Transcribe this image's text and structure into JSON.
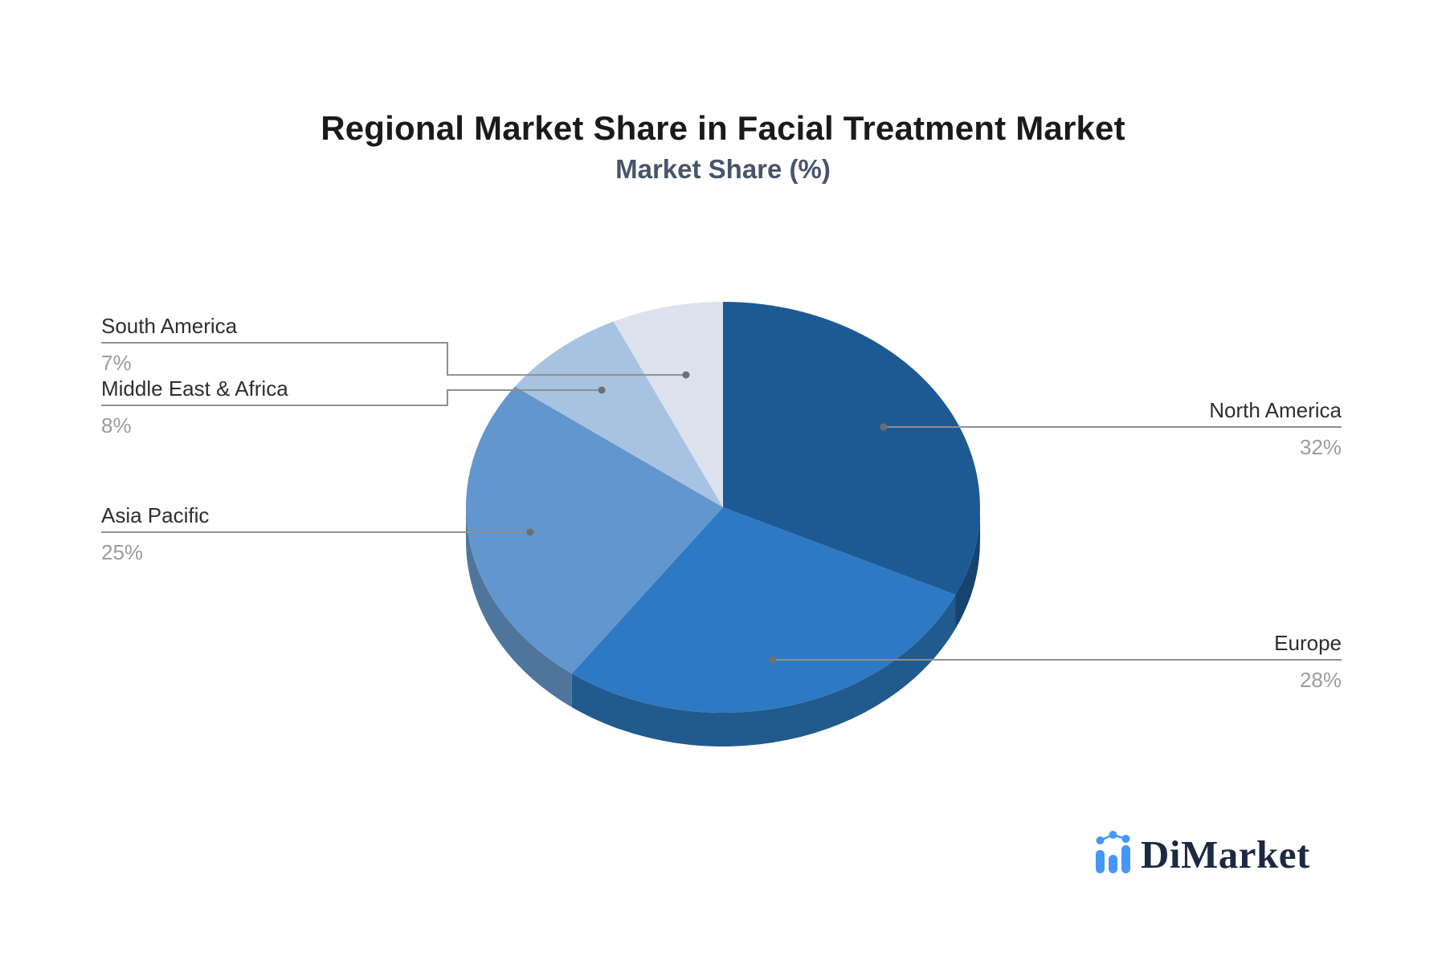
{
  "chart_data": {
    "type": "pie",
    "style": "3d",
    "title": "Regional Market Share in Facial Treatment Market",
    "subtitle": "Market Share (%)",
    "unit": "%",
    "labels": [
      "North America",
      "Europe",
      "Asia Pacific",
      "Middle East & Africa",
      "South America"
    ],
    "values": [
      32,
      28,
      25,
      8,
      7
    ],
    "display_values": [
      "32%",
      "28%",
      "25%",
      "8%",
      "7%"
    ],
    "colors": [
      "#1d5a94",
      "#2e79c3",
      "#6296ce",
      "#a7c3e1",
      "#dbe2ee"
    ],
    "side_colors": [
      "#16436f",
      "#215a8d",
      "#50759d",
      "#7e9dbd",
      "#b8c4d6"
    ],
    "start_angle_deg": 0,
    "direction": "clockwise",
    "legend": "leader-line-labels",
    "background": "#ffffff"
  },
  "leader_style": {
    "line_color": "#8f8f8f",
    "dot_color": "#6f6f6f",
    "label_color": "#2e2e2e",
    "value_color": "#9c9c9c"
  },
  "branding": {
    "name": "DiMarket",
    "icon": "bar-chart-trend-icon",
    "text_color": "#1c2940",
    "icon_color": "#4596f7"
  }
}
